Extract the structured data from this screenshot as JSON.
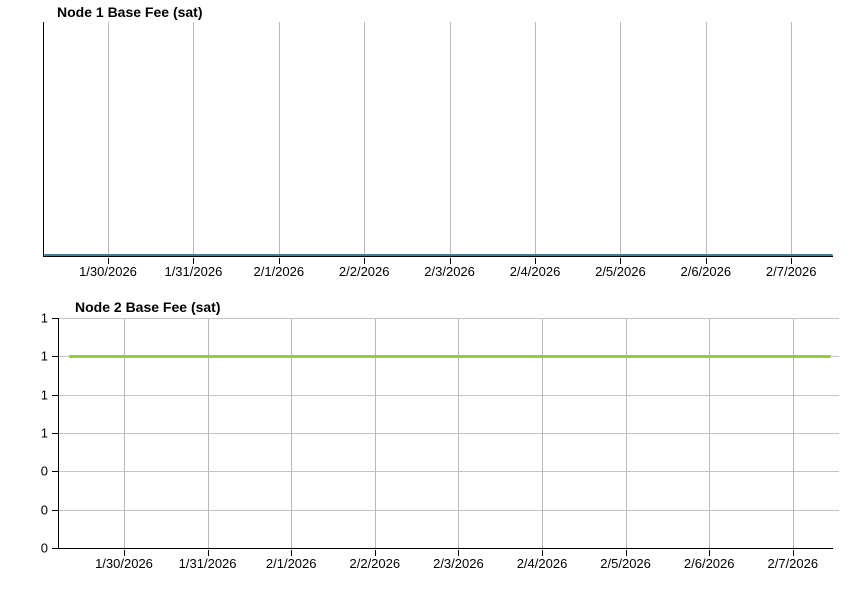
{
  "page": {
    "background_color": "#ffffff",
    "axis_color": "#000000",
    "gridline_color": "#b9b9b9"
  },
  "chart_data": [
    {
      "type": "line",
      "title": "Node 1 Base Fee (sat)",
      "x": [
        "1/30/2026",
        "1/31/2026",
        "2/1/2026",
        "2/2/2026",
        "2/3/2026",
        "2/4/2026",
        "2/5/2026",
        "2/6/2026",
        "2/7/2026"
      ],
      "series": [
        {
          "name": "Node 1 Base Fee (sat)",
          "values": [
            0,
            0,
            0,
            0,
            0,
            0,
            0,
            0,
            0
          ],
          "color": "#31859B"
        }
      ],
      "xlabel": "",
      "ylabel": "",
      "ylim": [
        0,
        1
      ],
      "y_tick_labels": [],
      "grid": true,
      "legend": false
    },
    {
      "type": "line",
      "title": "Node 2 Base Fee (sat)",
      "x": [
        "1/30/2026",
        "1/31/2026",
        "2/1/2026",
        "2/2/2026",
        "2/3/2026",
        "2/4/2026",
        "2/5/2026",
        "2/6/2026",
        "2/7/2026"
      ],
      "series": [
        {
          "name": "Node 2 Base Fee (sat)",
          "values": [
            1,
            1,
            1,
            1,
            1,
            1,
            1,
            1,
            1
          ],
          "color": "#9ACD32"
        }
      ],
      "xlabel": "",
      "ylabel": "",
      "ylim": [
        0,
        1.2
      ],
      "y_tick_labels": [
        "1",
        "1",
        "1",
        "1",
        "0",
        "0",
        "0"
      ],
      "grid": true,
      "legend": false
    }
  ]
}
